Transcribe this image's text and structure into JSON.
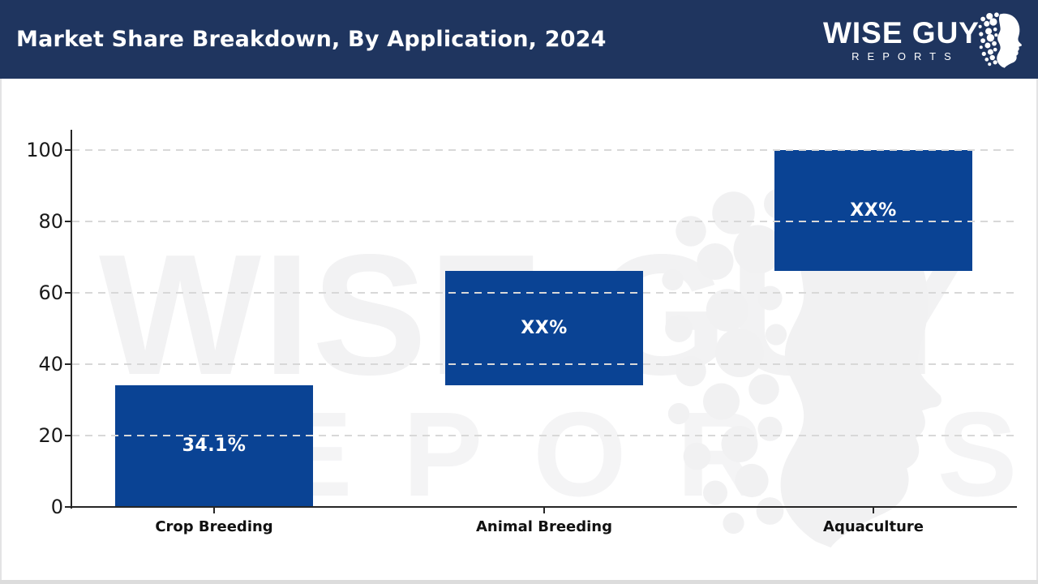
{
  "header": {
    "title": "Market Share Breakdown, By Application, 2024",
    "logo": {
      "line1": "WISE GUY",
      "line2": "REPORTS"
    }
  },
  "watermark": {
    "line1": "WISE GUY",
    "line2": "REPORTS"
  },
  "chart_data": {
    "type": "bar",
    "subtype": "floating-segment-waterfall",
    "title": "Market Share Breakdown, By Application, 2024",
    "categories": [
      "Crop Breeding",
      "Animal Breeding",
      "Aquaculture"
    ],
    "segments": [
      {
        "category": "Crop Breeding",
        "start": 0,
        "end": 34.1,
        "label": "34.1%"
      },
      {
        "category": "Animal Breeding",
        "start": 34.1,
        "end": 66.2,
        "label": "XX%"
      },
      {
        "category": "Aquaculture",
        "start": 66.2,
        "end": 100,
        "label": "XX%"
      }
    ],
    "yticks": [
      0,
      20,
      40,
      60,
      80,
      100
    ],
    "ylim": [
      0,
      105.7
    ],
    "xlabel": "",
    "ylabel": "",
    "grid": "horizontal-dashed",
    "legend": "none",
    "bar_color": "#0A4394",
    "bar_label_color": "#FFFFFF",
    "axis_color": "#262626",
    "grid_color": "#D8D8D8",
    "header_bg": "#1F355F",
    "watermark_color": "#F2F2F3"
  }
}
